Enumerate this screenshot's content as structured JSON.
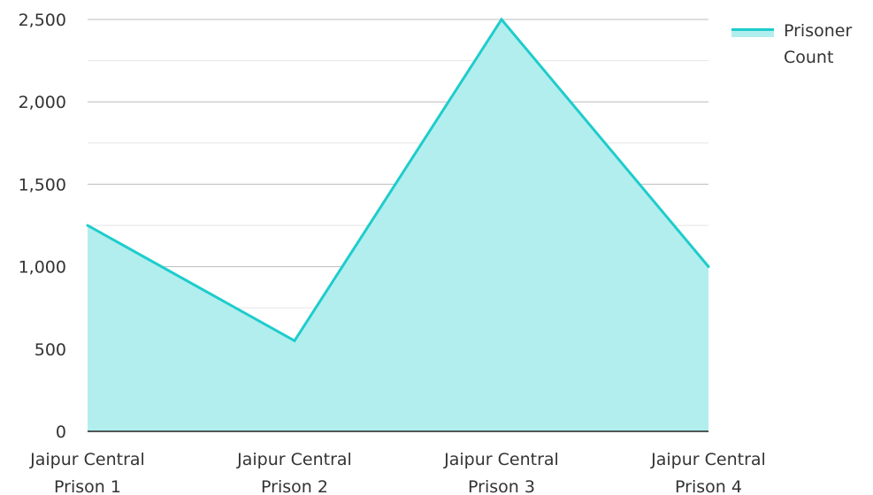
{
  "chart_data": {
    "type": "area",
    "categories": [
      [
        "Jaipur Central",
        "Prison 1"
      ],
      [
        "Jaipur Central",
        "Prison 2"
      ],
      [
        "Jaipur Central",
        "Prison 3"
      ],
      [
        "Jaipur Central",
        "Prison 4"
      ]
    ],
    "series": [
      {
        "name": "Prisoner Count",
        "name_lines": [
          "Prisoner",
          "Count"
        ],
        "values": [
          1250,
          550,
          2500,
          1000
        ]
      }
    ],
    "ylim": [
      0,
      2500
    ],
    "yticks": [
      0,
      500,
      1000,
      1500,
      2000,
      2500
    ],
    "ytick_labels": [
      "0",
      "500",
      "1,000",
      "1,500",
      "2,000",
      "2,500"
    ],
    "grid": true,
    "minor_grid": true,
    "legend_position": "top-right",
    "colors": {
      "line": "#1fcccc",
      "fill": "#b2eeee",
      "grid_major": "#bbbbbb",
      "grid_minor": "#e6e6e6",
      "axis": "#222222"
    }
  }
}
